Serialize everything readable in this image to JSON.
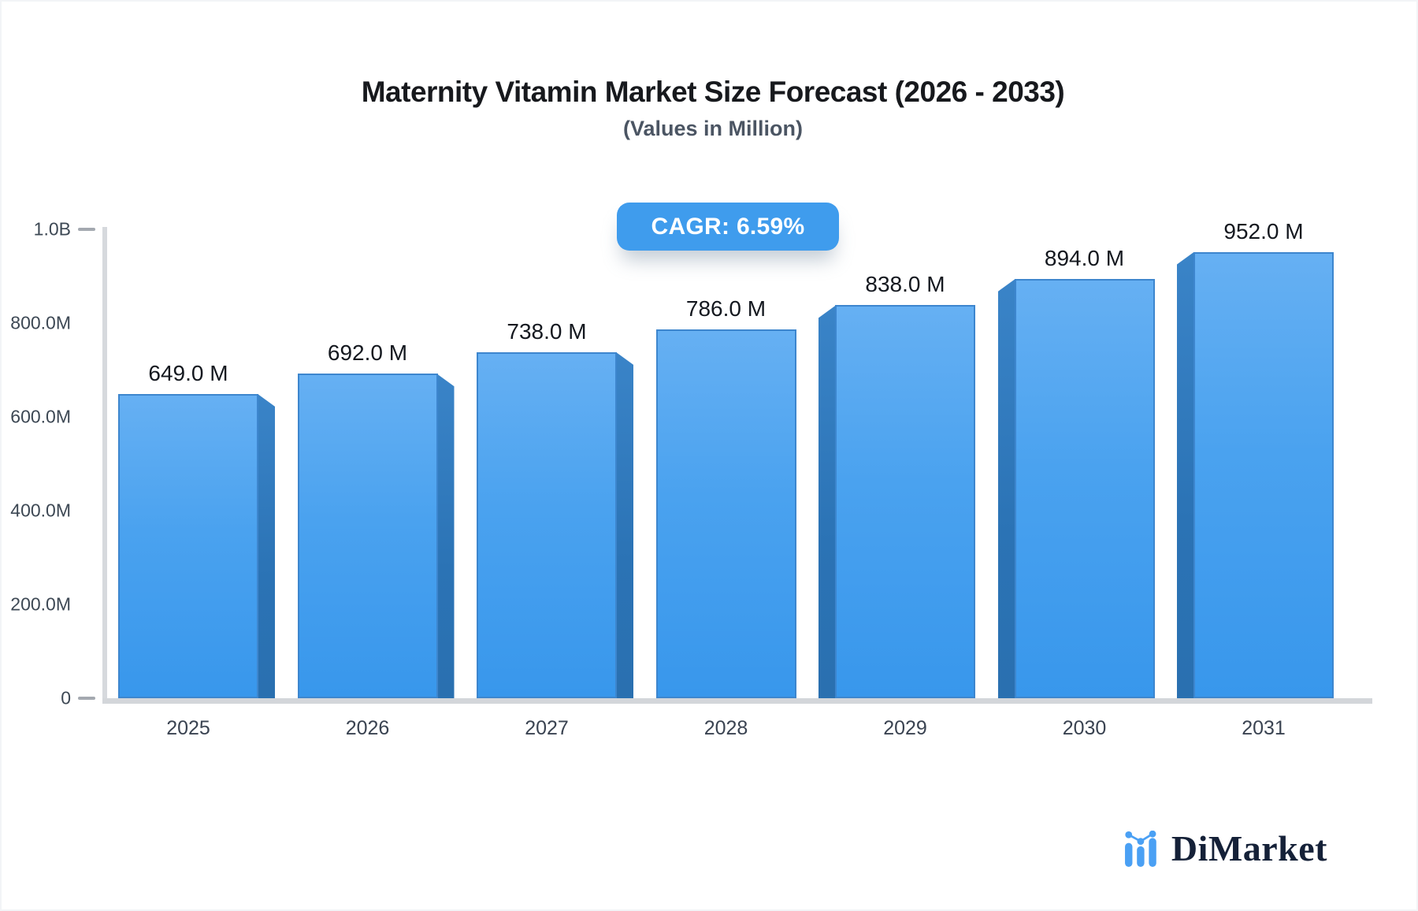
{
  "title": "Maternity Vitamin Market Size Forecast (2026 - 2033)",
  "subtitle": "(Values in Million)",
  "badge": {
    "label": "CAGR: 6.59%"
  },
  "brand": {
    "name": "DiMarket",
    "icon": "bar-chart-logo-icon"
  },
  "colors": {
    "bar_face_top": "#66b0f3",
    "bar_face_bottom": "#3897ec",
    "bar_side": "#2b73b5",
    "bar_border": "#3d86ce",
    "badge_bg": "#3f9ced",
    "axis_line": "#d5d8db",
    "brand_navy": "#152138",
    "brand_blue": "#4aa0f4"
  },
  "chart_data": {
    "type": "bar",
    "categories": [
      "2025",
      "2026",
      "2027",
      "2028",
      "2029",
      "2030",
      "2031"
    ],
    "values": [
      649,
      692,
      738,
      786,
      838,
      894,
      952
    ],
    "value_labels": [
      "649.0 M",
      "692.0 M",
      "738.0 M",
      "786.0 M",
      "838.0 M",
      "894.0 M",
      "952.0 M"
    ],
    "title": "Maternity Vitamin Market Size Forecast (2026 - 2033)",
    "subtitle": "(Values in Million)",
    "xlabel": "",
    "ylabel": "",
    "ylim": [
      0,
      1000
    ],
    "y_ticks": [
      {
        "label": "1.0B",
        "value": 1000,
        "dash": true
      },
      {
        "label": "800.0M",
        "value": 800,
        "dash": false
      },
      {
        "label": "600.0M",
        "value": 600,
        "dash": false
      },
      {
        "label": "400.0M",
        "value": 400,
        "dash": false
      },
      {
        "label": "200.0M",
        "value": 200,
        "dash": false
      },
      {
        "label": "0",
        "value": 0,
        "dash": true
      }
    ],
    "legend": null,
    "grid": false,
    "style": "3d-beveled-bars, bevel faces toward center"
  }
}
